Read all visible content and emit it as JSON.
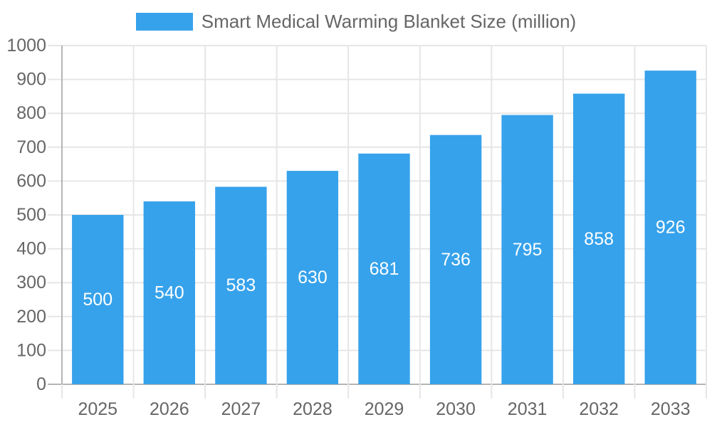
{
  "chart_data": {
    "type": "bar",
    "title": "Smart Medical Warming Blanket Size (million)",
    "series_name": "Smart Medical Warming Blanket Size (million)",
    "categories": [
      "2025",
      "2026",
      "2027",
      "2028",
      "2029",
      "2030",
      "2031",
      "2032",
      "2033"
    ],
    "values": [
      500,
      540,
      583,
      630,
      681,
      736,
      795,
      858,
      926
    ],
    "xlabel": "",
    "ylabel": "",
    "ylim": [
      0,
      1000
    ],
    "ytick_step": 100,
    "ytick_labels": [
      "0",
      "100",
      "200",
      "300",
      "400",
      "500",
      "600",
      "700",
      "800",
      "900",
      "1000"
    ],
    "grid": true,
    "legend_position": "top",
    "value_labels_inside_bars": true,
    "colors": {
      "bar": "#36A2EB",
      "value_label": "#ffffff",
      "axis_text": "#666666",
      "grid_line": "#e6e6e6",
      "axis_line": "#b5b5b5",
      "background": "#ffffff"
    }
  }
}
